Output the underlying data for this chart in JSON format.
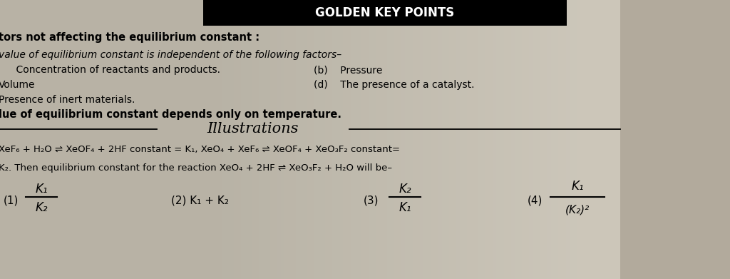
{
  "title": "GOLDEN KEY POINTS",
  "title_bg": "#000000",
  "title_color": "#ffffff",
  "bg_color": "#c8c2b4",
  "bg_color_right": "#b0a898",
  "text_color": "#000000",
  "line1_bold": "tors not affecting the equilibrium constant :",
  "line2_it": "value of equilibrium constant is independent of the following factors–",
  "line3a": "    Concentration of reactants and products.",
  "line3b": "(b)    Pressure",
  "line4a": "Volume",
  "line5b": "(d)    The presence of a catalyst.",
  "line5a": "Presence of inert materials.",
  "line6_bold": "lue of equilibrium constant depends only on temperature.",
  "illustrations_title": "Illustrations",
  "eq1": "XeF₆ + H₂O ⇌ XeOF₄ + 2HF constant = K₁, XeO₄ + XeF₆ ⇌ XeOF₄ + XeO₃F₂ constant=",
  "eq2": "K₂. Then equilibrium constant for the reaction XeO₄ + 2HF ⇌ XeO₃F₂ + H₂O will be–",
  "opt1_num": "K₁",
  "opt1_den": "K₂",
  "opt2": "(2) K₁ + K₂",
  "opt3_num": "K₂",
  "opt3_den": "K₁",
  "opt4_num": "K₁",
  "opt4_den": "(K₂)²",
  "font_size_title": 12,
  "font_size_body": 10,
  "font_size_bold": 10.5,
  "font_size_eq": 9.5,
  "font_size_illus": 15,
  "font_size_options": 11
}
